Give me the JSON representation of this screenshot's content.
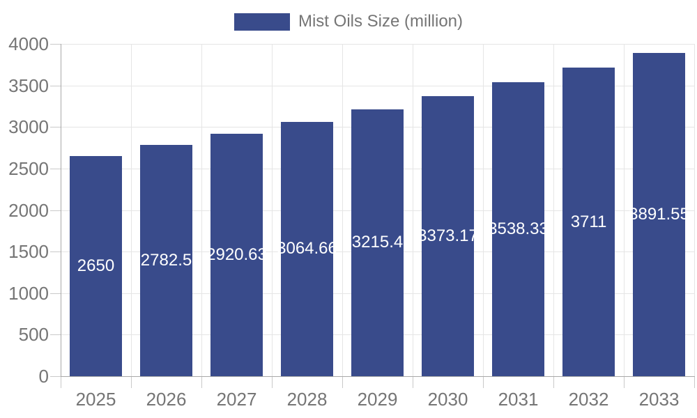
{
  "legend": {
    "label": "Mist Oils Size (million)"
  },
  "colors": {
    "bar": "#394b8b",
    "axis_line": "#a8a8a8",
    "tick_line": "#c9c9c9",
    "grid_line": "#e5e5e5",
    "axis_text": "#757575",
    "bar_label_text": "#ffffff",
    "background": "#ffffff"
  },
  "chart_data": {
    "type": "bar",
    "title": "Mist Oils Size (million)",
    "categories": [
      "2025",
      "2026",
      "2027",
      "2028",
      "2029",
      "2030",
      "2031",
      "2032",
      "2033"
    ],
    "series": [
      {
        "name": "Mist Oils Size (million)",
        "values": [
          2650,
          2782.5,
          2920.63,
          3064.66,
          3215.4,
          3373.17,
          3538.33,
          3711,
          3891.55
        ],
        "value_labels": [
          "2650",
          "2782.5",
          "2920.63",
          "3064.66",
          "3215.4",
          "3373.17",
          "3538.33",
          "3711",
          "3891.55"
        ]
      }
    ],
    "xlabel": "",
    "ylabel": "",
    "ylim": [
      0,
      4000
    ],
    "yticks": [
      0,
      500,
      1000,
      1500,
      2000,
      2500,
      3000,
      3500,
      4000
    ],
    "ytick_labels": [
      "0",
      "500",
      "1000",
      "1500",
      "2000",
      "2500",
      "3000",
      "3500",
      "4000"
    ],
    "grid": true,
    "value_labels_position": "inside-center",
    "legend_position": "top-center"
  }
}
